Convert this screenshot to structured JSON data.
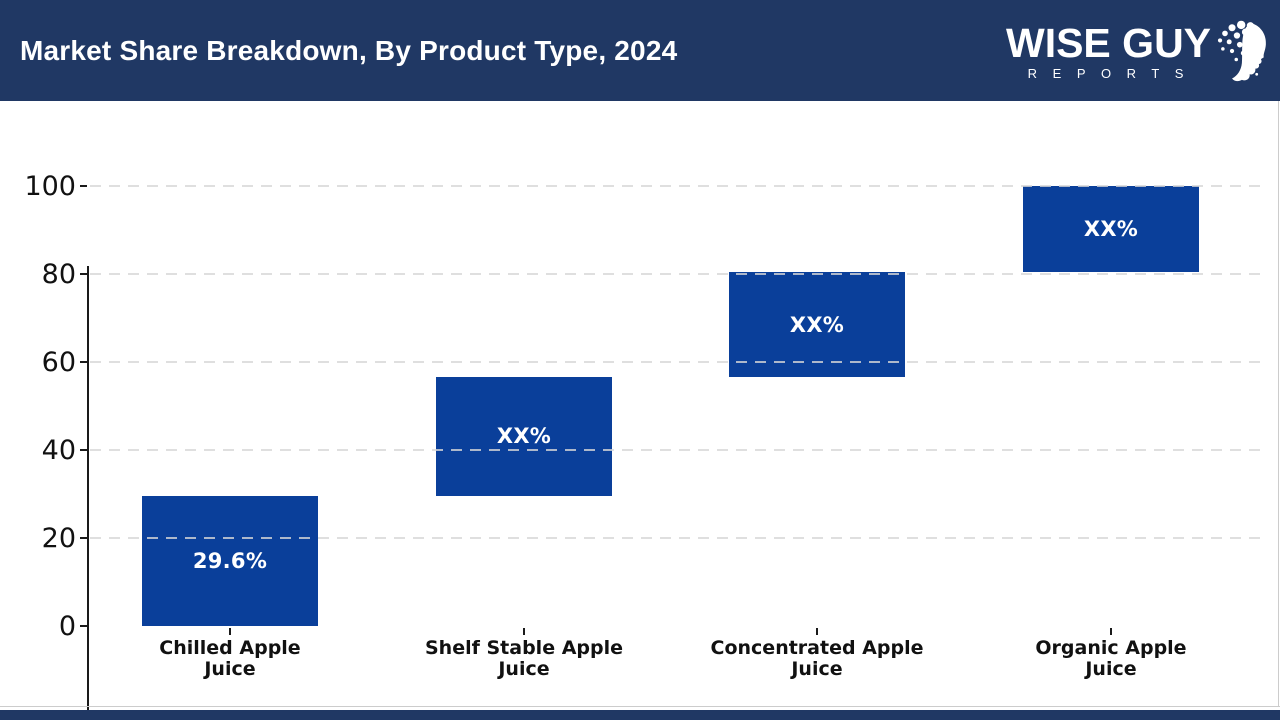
{
  "header": {
    "title": "Market Share Breakdown, By Product Type, 2024",
    "background_color": "#203864",
    "logo": {
      "line1": "WISE GUY",
      "line2": "R E P O R T S",
      "head_icon": "dotted-face-profile"
    }
  },
  "watermark": {
    "line1": "WISE GUY",
    "line2": "R E P O R T S",
    "head_icon": "dotted-face-profile",
    "color": "#f1f1f4"
  },
  "chart_data": {
    "type": "bar",
    "subtype": "waterfall-floating-bars",
    "title": "Market Share Breakdown, By Product Type, 2024",
    "categories": [
      "Chilled Apple Juice",
      "Shelf Stable Apple Juice",
      "Concentrated Apple Juice",
      "Organic Apple Juice"
    ],
    "category_label_lines": [
      [
        "Chilled Apple",
        "Juice"
      ],
      [
        "Shelf Stable Apple",
        "Juice"
      ],
      [
        "Concentrated Apple",
        "Juice"
      ],
      [
        "Organic Apple",
        "Juice"
      ]
    ],
    "bars": [
      {
        "category": "Chilled Apple Juice",
        "start": 0,
        "end": 29.6,
        "value": 29.6,
        "label": "29.6%"
      },
      {
        "category": "Shelf Stable Apple Juice",
        "start": 29.6,
        "end": 56.6,
        "value": 27.0,
        "label": "XX%"
      },
      {
        "category": "Concentrated Apple Juice",
        "start": 56.6,
        "end": 80.4,
        "value": 23.8,
        "label": "XX%"
      },
      {
        "category": "Organic Apple Juice",
        "start": 80.4,
        "end": 100,
        "value": 19.6,
        "label": "XX%"
      }
    ],
    "ylim": [
      0,
      100
    ],
    "yticks": [
      0,
      20,
      40,
      60,
      80,
      100
    ],
    "xlabel": "",
    "ylabel": "",
    "grid": "horizontal-dashed",
    "grid_color": "#d7d7d7",
    "bar_color": "#0a3f9a",
    "bar_label_color": "#ffffff",
    "axis_color": "#1a1a1a",
    "legend": "none"
  }
}
